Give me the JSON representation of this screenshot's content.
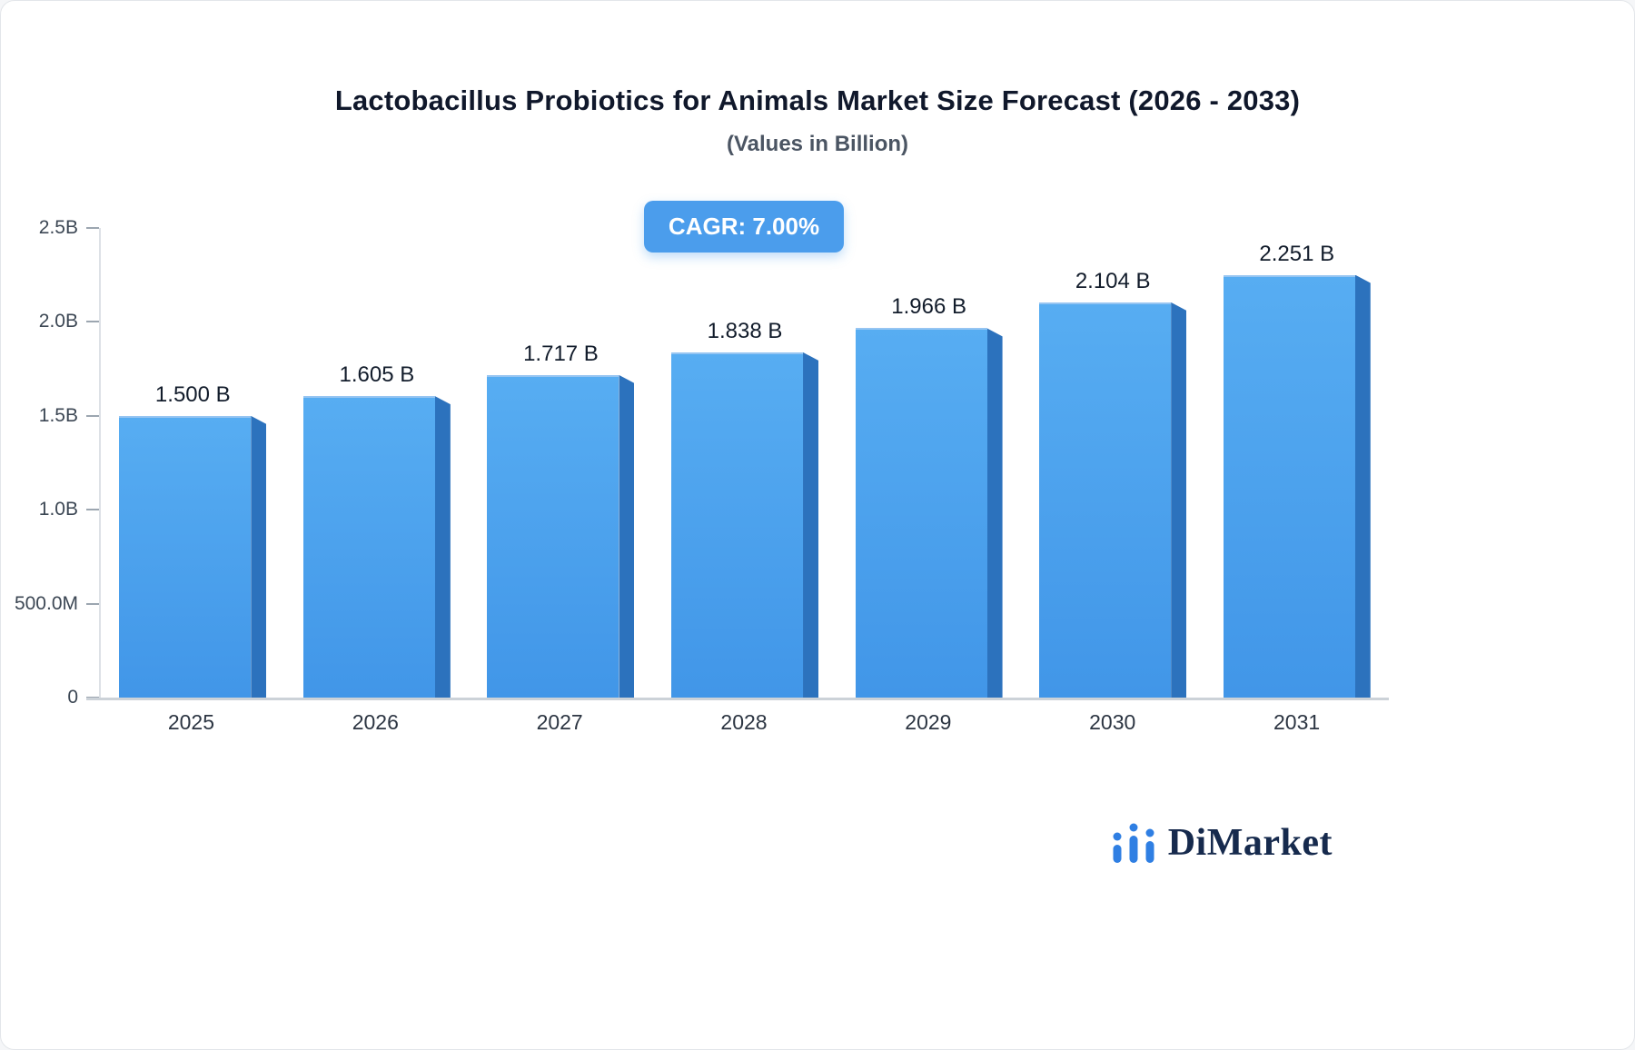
{
  "title": "Lactobacillus Probiotics for Animals Market Size Forecast (2026 - 2033)",
  "subtitle": "(Values in Billion)",
  "badge": {
    "label": "CAGR: 7.00%",
    "bg_color": "#4b9dec",
    "text_color": "#ffffff"
  },
  "brand": {
    "name": "DiMarket",
    "icon": "bar-chart-logo-icon",
    "text_color": "#162a4d",
    "icon_color": "#2f7fe3"
  },
  "chart_data": {
    "type": "bar",
    "title": "Lactobacillus Probiotics for Animals Market Size Forecast (2026 - 2033)",
    "subtitle": "(Values in Billion)",
    "categories": [
      "2025",
      "2026",
      "2027",
      "2028",
      "2029",
      "2030",
      "2031"
    ],
    "values": [
      1.5,
      1.605,
      1.717,
      1.838,
      1.966,
      2.104,
      2.251
    ],
    "data_labels": [
      "1.500 B",
      "1.605 B",
      "1.717 B",
      "1.838 B",
      "1.966 B",
      "2.104 B",
      "2.251 B"
    ],
    "unit": "Billion",
    "xlabel": "",
    "ylabel": "",
    "ylim": [
      0,
      2.5
    ],
    "yticks": [
      {
        "value": 0,
        "label": "0"
      },
      {
        "value": 0.5,
        "label": "500.0M"
      },
      {
        "value": 1.0,
        "label": "1.0B"
      },
      {
        "value": 1.5,
        "label": "1.5B"
      },
      {
        "value": 2.0,
        "label": "2.0B"
      },
      {
        "value": 2.5,
        "label": "2.5B"
      }
    ],
    "grid": false,
    "legend": false,
    "annotations": [
      "CAGR: 7.00%"
    ],
    "colors": {
      "bar_face_top": "#57adf2",
      "bar_face_bottom": "#4196e8",
      "bar_side": "#2c72bd"
    }
  }
}
